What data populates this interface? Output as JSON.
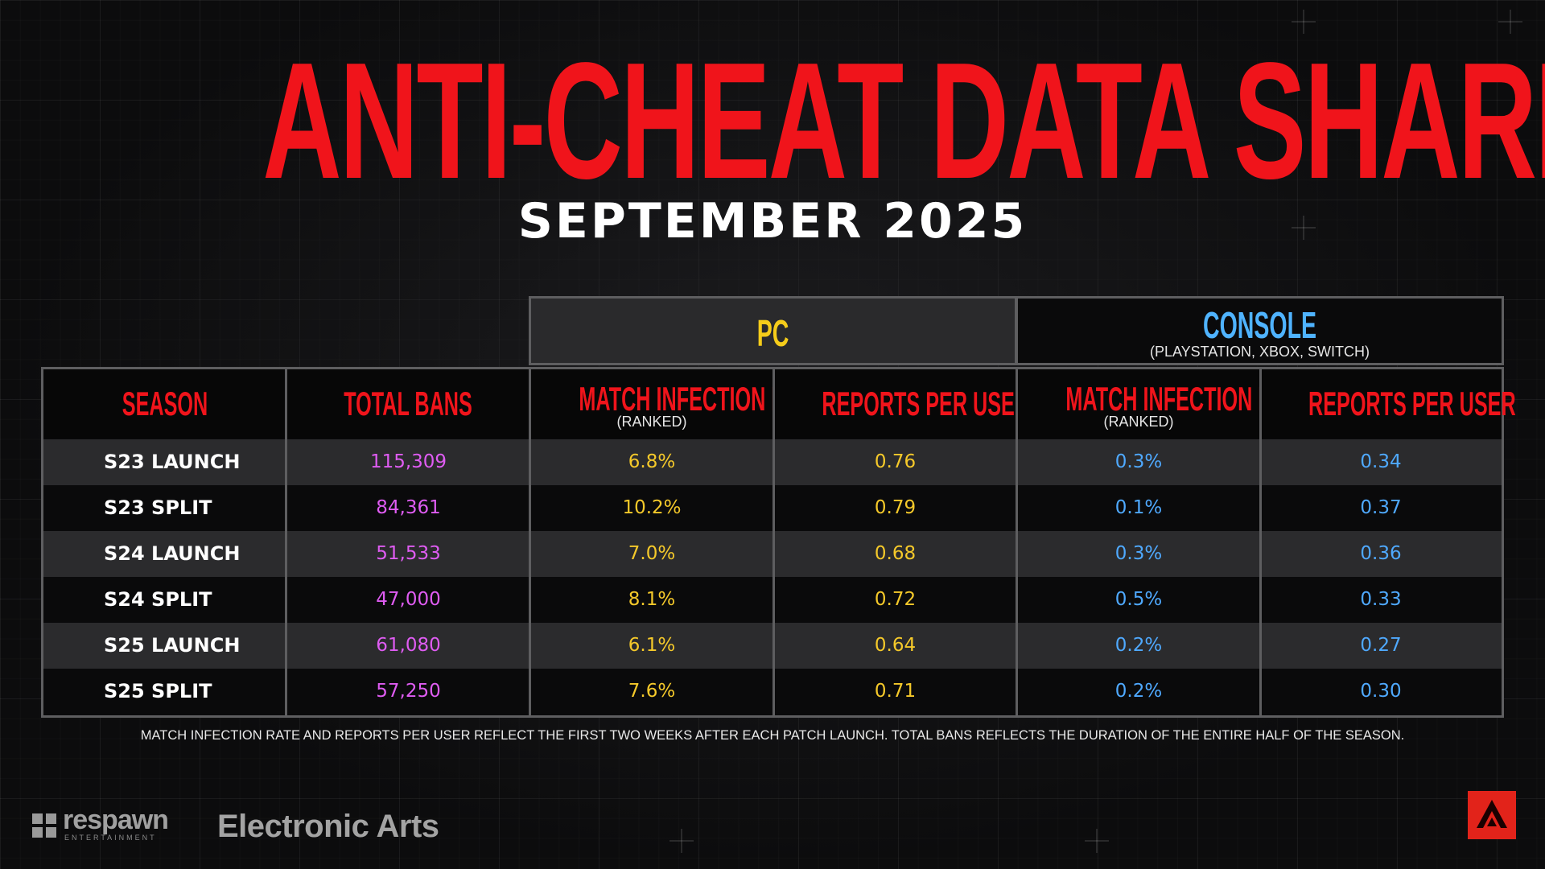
{
  "title": "ANTI-CHEAT DATA SHARE",
  "subtitle": "SEPTEMBER 2025",
  "groups": {
    "pc": {
      "label": "PC"
    },
    "console": {
      "label": "CONSOLE",
      "sub": "(PLAYSTATION, XBOX, SWITCH)"
    }
  },
  "columns": {
    "season": "SEASON",
    "total_bans": "TOTAL BANS",
    "pc_infection": "MATCH INFECTION RATE",
    "pc_infection_sub": "(RANKED)",
    "pc_reports": "REPORTS PER USER",
    "con_infection": "MATCH INFECTION RATE",
    "con_infection_sub": "(RANKED)",
    "con_reports": "REPORTS PER USER"
  },
  "rows": [
    {
      "season": "S23 LAUNCH",
      "total_bans": "115,309",
      "pc_infection": "6.8%",
      "pc_reports": "0.76",
      "con_infection": "0.3%",
      "con_reports": "0.34"
    },
    {
      "season": "S23 SPLIT",
      "total_bans": "84,361",
      "pc_infection": "10.2%",
      "pc_reports": "0.79",
      "con_infection": "0.1%",
      "con_reports": "0.37"
    },
    {
      "season": "S24 LAUNCH",
      "total_bans": "51,533",
      "pc_infection": "7.0%",
      "pc_reports": "0.68",
      "con_infection": "0.3%",
      "con_reports": "0.36"
    },
    {
      "season": "S24 SPLIT",
      "total_bans": "47,000",
      "pc_infection": "8.1%",
      "pc_reports": "0.72",
      "con_infection": "0.5%",
      "con_reports": "0.33"
    },
    {
      "season": "S25 LAUNCH",
      "total_bans": "61,080",
      "pc_infection": "6.1%",
      "pc_reports": "0.64",
      "con_infection": "0.2%",
      "con_reports": "0.27"
    },
    {
      "season": "S25 SPLIT",
      "total_bans": "57,250",
      "pc_infection": "7.6%",
      "pc_reports": "0.71",
      "con_infection": "0.2%",
      "con_reports": "0.30"
    }
  ],
  "footnote": "MATCH INFECTION RATE AND REPORTS PER USER REFLECT THE FIRST TWO WEEKS AFTER EACH PATCH LAUNCH.  TOTAL BANS REFLECTS THE DURATION OF THE ENTIRE HALF OF THE SEASON.",
  "logos": {
    "respawn_name": "respawn",
    "respawn_tag": "ENTERTAINMENT",
    "ea_name": "Electronic Arts",
    "respawn_icon": "respawn-logo-icon",
    "apex_icon": "apex-legends-logo-icon"
  },
  "colors": {
    "title_red": "#f0141b",
    "pc_yellow": "#f5c92a",
    "console_blue": "#4fa9ff",
    "bans_magenta": "#df5cf2",
    "apex_red": "#e2231a"
  }
}
